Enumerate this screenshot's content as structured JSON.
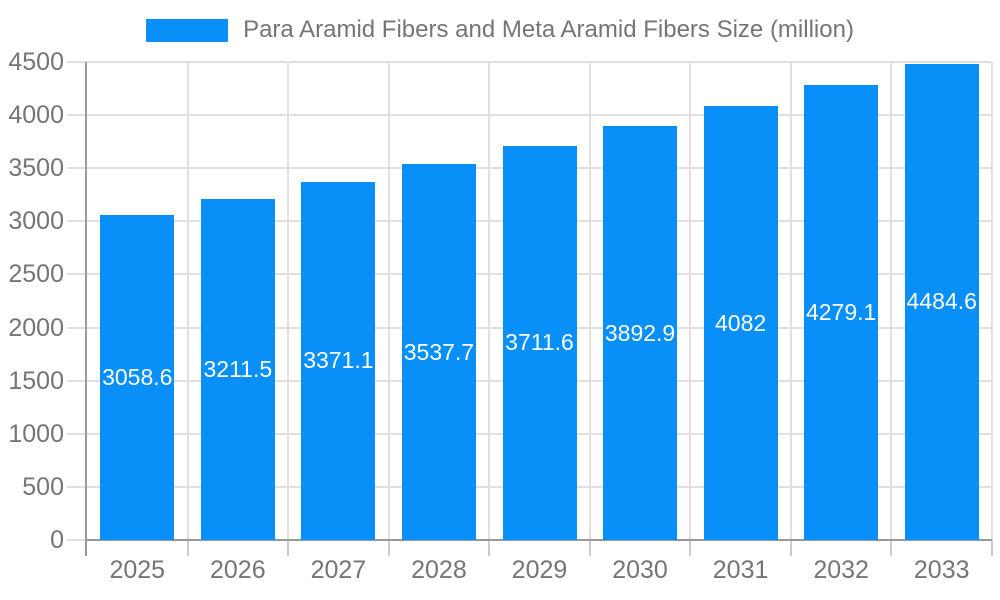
{
  "chart_data": {
    "type": "bar",
    "title": "Para Aramid Fibers and Meta Aramid Fibers Size (million)",
    "categories": [
      "2025",
      "2026",
      "2027",
      "2028",
      "2029",
      "2030",
      "2031",
      "2032",
      "2033"
    ],
    "series": [
      {
        "name": "Para Aramid Fibers and Meta Aramid Fibers Size (million)",
        "values": [
          3058.6,
          3211.5,
          3371.1,
          3537.7,
          3711.6,
          3892.9,
          4082,
          4279.1,
          4484.6
        ]
      }
    ],
    "value_labels": [
      "3058.6",
      "3211.5",
      "3371.1",
      "3537.7",
      "3711.6",
      "3892.9",
      "4082",
      "4279.1",
      "4484.6"
    ],
    "xlabel": "",
    "ylabel": "",
    "ylim": [
      0,
      4500
    ],
    "ytick_step": 500,
    "ytick_labels": [
      "0",
      "500",
      "1000",
      "1500",
      "2000",
      "2500",
      "3000",
      "3500",
      "4000",
      "4500"
    ],
    "grid": true,
    "legend_position": "top",
    "value_label_position": "inside-center",
    "colors": {
      "bar": "#0890f8",
      "grid": "#e0e0e0",
      "axis": "#999999",
      "tick": "#cccccc",
      "tick_label": "#757575",
      "value_label": "#ffffff",
      "legend_text": "#757575",
      "background": "#ffffff"
    }
  }
}
